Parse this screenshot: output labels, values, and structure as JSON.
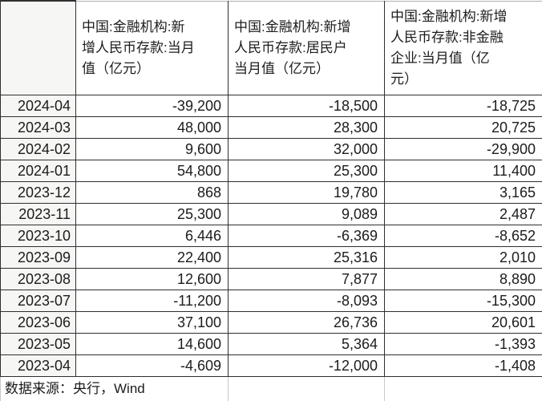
{
  "colors": {
    "border-dark": "#2f2f2f",
    "border-light": "#c9c9c9",
    "date-col-bg": "#f6f6f4",
    "text": "#1c1c1c"
  },
  "table": {
    "headers": [
      "",
      "中国:金融机构:新\n增人民币存款:当月\n值（亿元）",
      "中国:金融机构:新增\n人民币存款:居民户\n当月值（亿元）",
      "中国:金融机构:新增\n人民币存款:非金融\n企业:当月值（亿\n元）"
    ],
    "rows": [
      [
        "2024-04",
        "-39,200",
        "-18,500",
        "-18,725"
      ],
      [
        "2024-03",
        "48,000",
        "28,300",
        "20,725"
      ],
      [
        "2024-02",
        "9,600",
        "32,000",
        "-29,900"
      ],
      [
        "2024-01",
        "54,800",
        "25,300",
        "11,400"
      ],
      [
        "2023-12",
        "868",
        "19,780",
        "3,165"
      ],
      [
        "2023-11",
        "25,300",
        "9,089",
        "2,487"
      ],
      [
        "2023-10",
        "6,446",
        "-6,369",
        "-8,652"
      ],
      [
        "2023-09",
        "22,400",
        "25,316",
        "2,010"
      ],
      [
        "2023-08",
        "12,600",
        "7,877",
        "8,890"
      ],
      [
        "2023-07",
        "-11,200",
        "-8,093",
        "-15,300"
      ],
      [
        "2023-06",
        "37,100",
        "26,736",
        "20,601"
      ],
      [
        "2023-05",
        "14,600",
        "5,364",
        "-1,393"
      ],
      [
        "2023-04",
        "-4,609",
        "-12,000",
        "-1,408"
      ]
    ],
    "source_note": "数据来源：央行，Wind"
  },
  "chart_data": {
    "type": "table",
    "title": "",
    "categories": [
      "2024-04",
      "2024-03",
      "2024-02",
      "2024-01",
      "2023-12",
      "2023-11",
      "2023-10",
      "2023-09",
      "2023-08",
      "2023-07",
      "2023-06",
      "2023-05",
      "2023-04"
    ],
    "series": [
      {
        "name": "中国:金融机构:新增人民币存款:当月值（亿元）",
        "values": [
          -39200,
          48000,
          9600,
          54800,
          868,
          25300,
          6446,
          22400,
          12600,
          -11200,
          37100,
          14600,
          -4609
        ]
      },
      {
        "name": "中国:金融机构:新增人民币存款:居民户当月值（亿元）",
        "values": [
          -18500,
          28300,
          32000,
          25300,
          19780,
          9089,
          -6369,
          25316,
          7877,
          -8093,
          26736,
          5364,
          -12000
        ]
      },
      {
        "name": "中国:金融机构:新增人民币存款:非金融企业:当月值（亿元）",
        "values": [
          -18725,
          20725,
          -29900,
          11400,
          3165,
          2487,
          -8652,
          2010,
          8890,
          -15300,
          20601,
          -1393,
          -1408
        ]
      }
    ],
    "source": "数据来源：央行，Wind",
    "unit": "亿元"
  }
}
